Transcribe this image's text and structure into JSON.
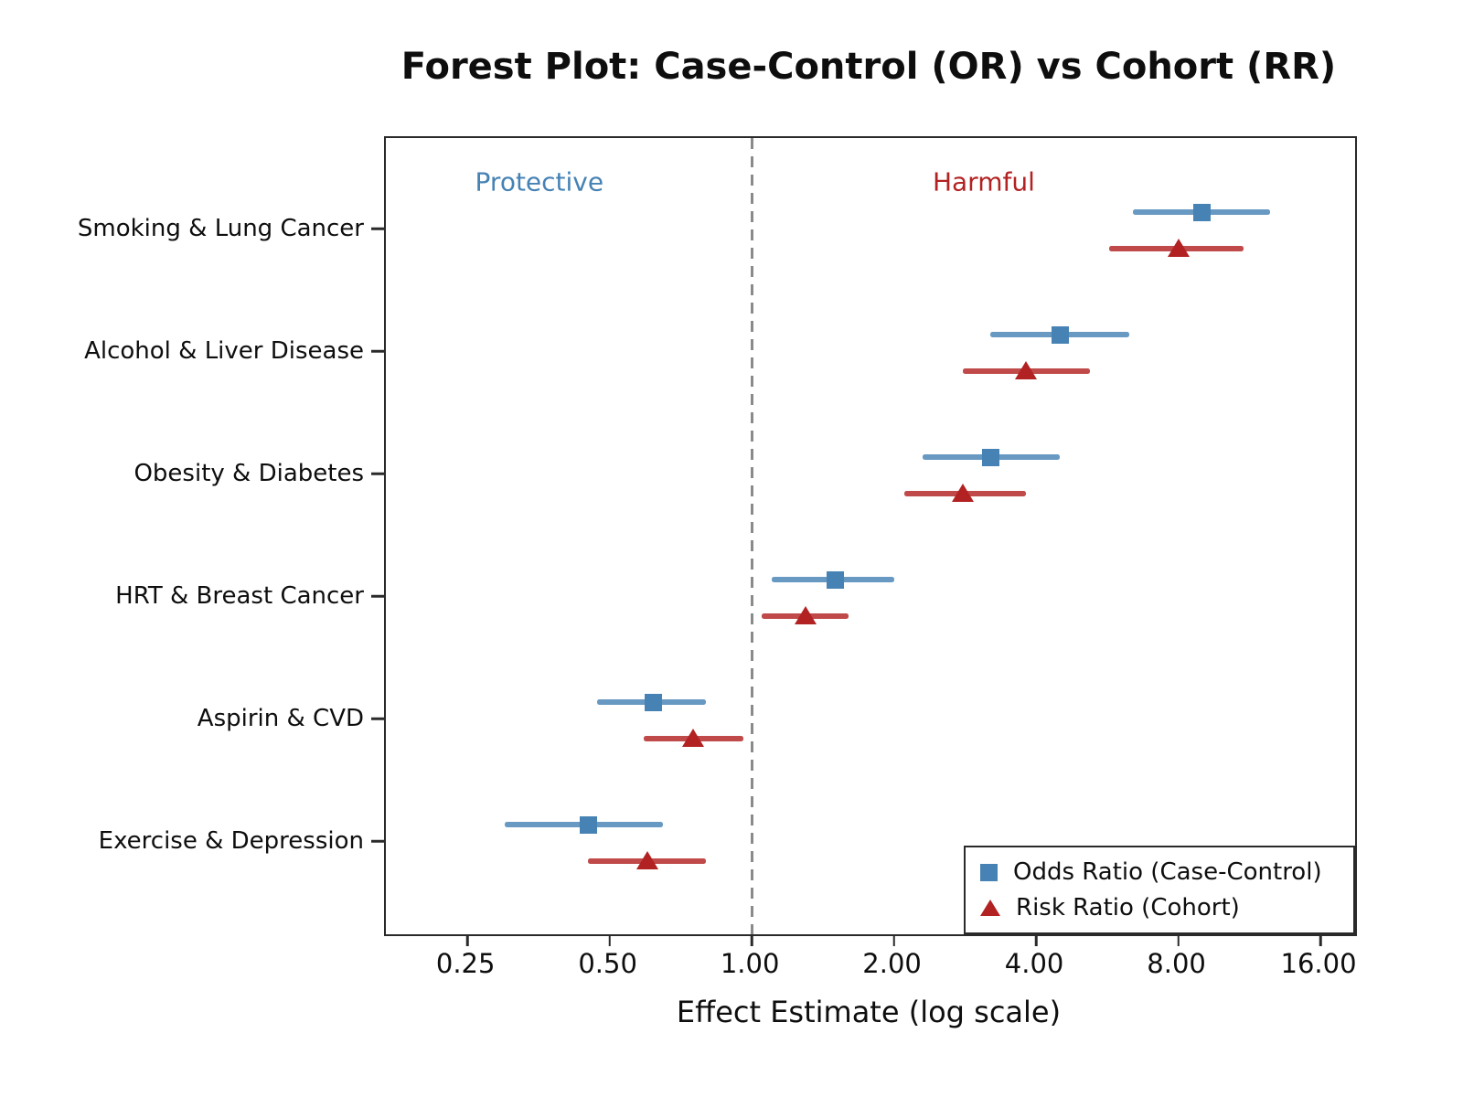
{
  "title": "Forest Plot: Case-Control (OR) vs Cohort (RR)",
  "annotations": {
    "protective": "Protective",
    "harmful": "Harmful",
    "protective_x": 0.355,
    "harmful_x": 3.1
  },
  "colors": {
    "odds_ratio_blue": "#4682B4",
    "risk_ratio_red": "#B22222",
    "reference_line_gray": "#8a8a8a",
    "frame": "#2a2a2a"
  },
  "chart_data": {
    "type": "scatter",
    "subtype": "forest-plot",
    "title": "Forest Plot: Case-Control (OR) vs Cohort (RR)",
    "xlabel": "Effect Estimate (log scale)",
    "ylabel": "",
    "x_scale": "log",
    "xlim": [
      0.168,
      18.95
    ],
    "grid": false,
    "reference_line_x": 1.0,
    "x_ticks": [
      0.25,
      0.5,
      1,
      2,
      4,
      8,
      16
    ],
    "x_tick_labels": [
      "0.25",
      "0.50",
      "1.00",
      "2.00",
      "4.00",
      "8.00",
      "16.00"
    ],
    "categories": [
      "Smoking & Lung Cancer",
      "Alcohol & Liver Disease",
      "Obesity & Diabetes",
      "HRT & Breast Cancer",
      "Aspirin & CVD",
      "Exercise & Depression"
    ],
    "series": [
      {
        "name": "Odds Ratio (Case-Control)",
        "marker": "square",
        "color": "#4682B4",
        "values": [
          9.0,
          4.5,
          3.2,
          1.5,
          0.62,
          0.45
        ],
        "ci_low": [
          6.4,
          3.2,
          2.3,
          1.1,
          0.47,
          0.3
        ],
        "ci_high": [
          12.5,
          6.3,
          4.5,
          2.0,
          0.8,
          0.65
        ]
      },
      {
        "name": "Risk Ratio (Cohort)",
        "marker": "triangle",
        "color": "#B22222",
        "values": [
          8.0,
          3.8,
          2.8,
          1.3,
          0.75,
          0.6
        ],
        "ci_low": [
          5.7,
          2.8,
          2.1,
          1.05,
          0.59,
          0.45
        ],
        "ci_high": [
          11.0,
          5.2,
          3.8,
          1.6,
          0.96,
          0.8
        ]
      }
    ],
    "legend": {
      "position": "lower right"
    }
  }
}
